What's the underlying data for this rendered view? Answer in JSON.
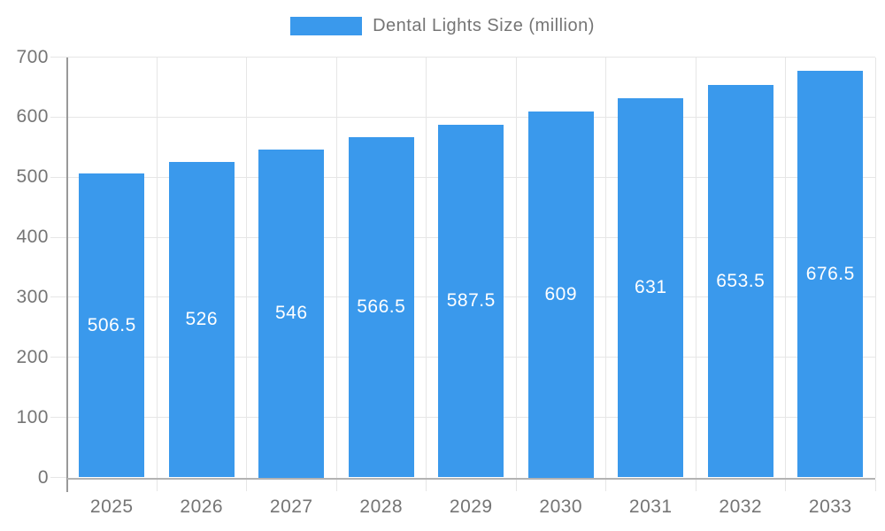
{
  "legend": {
    "label": "Dental Lights Size (million)"
  },
  "colors": {
    "bar": "#3A99EC",
    "grid": "#E6E6E6",
    "axis": "#999999",
    "baseline": "#B3B3B3",
    "text": "#757575",
    "value_label": "#FFFFFF",
    "background": "#FFFFFF"
  },
  "chart_data": {
    "type": "bar",
    "title": "Dental Lights Size (million)",
    "series_name": "Dental Lights Size (million)",
    "categories": [
      "2025",
      "2026",
      "2027",
      "2028",
      "2029",
      "2030",
      "2031",
      "2032",
      "2033"
    ],
    "values": [
      506.5,
      526,
      546,
      566.5,
      587.5,
      609,
      631,
      653.5,
      676.5
    ],
    "value_labels": [
      "506.5",
      "526",
      "546",
      "566.5",
      "587.5",
      "609",
      "631",
      "653.5",
      "676.5"
    ],
    "value_label_position": "inside-center",
    "xlabel": "",
    "ylabel": "",
    "ylim": [
      0,
      700
    ],
    "yticks": [
      0,
      100,
      200,
      300,
      400,
      500,
      600,
      700
    ],
    "grid": true,
    "legend_position": "top-center"
  }
}
